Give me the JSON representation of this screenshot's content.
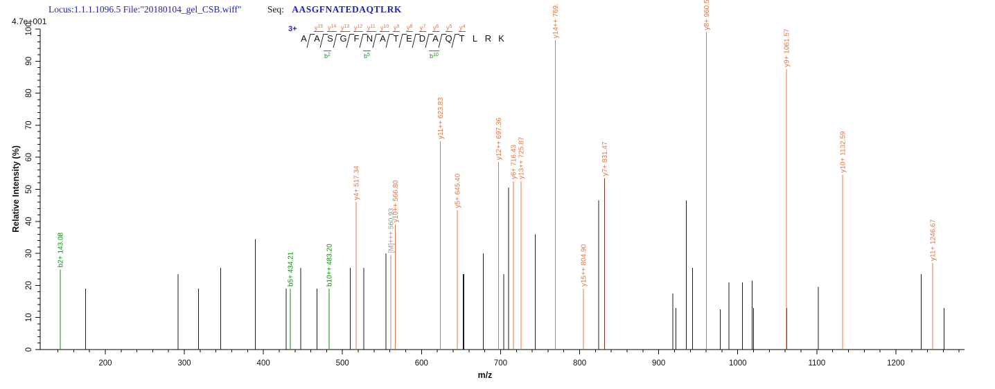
{
  "header": {
    "locus_file": "Locus:1.1.1.1096.5 File:\"20180104_gel_CSB.wiff\"",
    "seq_label": "Seq:",
    "seq_value": "AASGFNATEDAQTLRK"
  },
  "scale_note": "4.7e+001",
  "sequence_panel": {
    "charge_label": "3+",
    "residues": [
      "A",
      "A",
      "S",
      "G",
      "F",
      "N",
      "A",
      "T",
      "E",
      "D",
      "A",
      "Q",
      "T",
      "L",
      "R",
      "K"
    ],
    "y_ion_labels": [
      "y15",
      "y14",
      "y13",
      "y12",
      "y11",
      "y10",
      "y9",
      "y8",
      "y7",
      "y6",
      "y5",
      "y4"
    ],
    "b_ion_labels": [
      {
        "after_residue": 2,
        "label": "b2"
      },
      {
        "after_residue": 5,
        "label": "b5"
      },
      {
        "after_residue": 10,
        "label": "b10"
      }
    ]
  },
  "chart_data": {
    "type": "bar",
    "variant": "ms2-peptide-fragment-spectrum",
    "xlabel": "m/z",
    "ylabel": "Relative  Intensity (%)",
    "y_scale_note": "4.7e+001",
    "xlim": [
      121,
      1287
    ],
    "ylim": [
      0,
      100
    ],
    "x_major_ticks": [
      200,
      300,
      400,
      500,
      600,
      700,
      800,
      900,
      1000,
      1100,
      1200
    ],
    "x_minor_step": 20,
    "y_major_step": 10,
    "y_minor_step": 2,
    "grid": false,
    "legend": "none",
    "colors": {
      "y_ion": "#e4743e",
      "b_ion": "#089008",
      "precursor": "#979797",
      "unassigned": "#1a1a1a",
      "overlap": "#7c3014",
      "axis": "#000000",
      "header_blue": "#2323b4"
    },
    "peaks": [
      {
        "mz": 143.08,
        "i": 25,
        "label": "b2+ 143.08",
        "type": "b"
      },
      {
        "mz": 175,
        "i": 19,
        "type": "unassigned"
      },
      {
        "mz": 292,
        "i": 23.5,
        "type": "unassigned"
      },
      {
        "mz": 318,
        "i": 19,
        "type": "unassigned"
      },
      {
        "mz": 346,
        "i": 25.5,
        "type": "unassigned"
      },
      {
        "mz": 390,
        "i": 34.5,
        "type": "unassigned"
      },
      {
        "mz": 429,
        "i": 19,
        "type": "unassigned"
      },
      {
        "mz": 434.21,
        "i": 19,
        "label": "b5+ 434.21",
        "type": "b"
      },
      {
        "mz": 447,
        "i": 25.5,
        "type": "unassigned"
      },
      {
        "mz": 468,
        "i": 19,
        "type": "unassigned"
      },
      {
        "mz": 483.2,
        "i": 19,
        "label": "b10++ 483.20",
        "type": "b"
      },
      {
        "mz": 510,
        "i": 25.5,
        "type": "unassigned"
      },
      {
        "mz": 517.34,
        "i": 46,
        "label": "y4+ 517.34",
        "type": "y"
      },
      {
        "mz": 527,
        "i": 25.5,
        "type": "unassigned"
      },
      {
        "mz": 555,
        "i": 30,
        "type": "unassigned"
      },
      {
        "mz": 560.93,
        "i": 29.5,
        "label": "[M]+++ 560.93",
        "type": "precursor"
      },
      {
        "mz": 566.8,
        "i": 39,
        "label": "y10++ 566.80",
        "type": "y"
      },
      {
        "mz": 623.83,
        "i": 65,
        "label": "y11++ 623.83",
        "type": "y"
      },
      {
        "mz": 645.4,
        "i": 43.5,
        "label": "y5+ 645.40",
        "type": "y"
      },
      {
        "mz": 653,
        "i": 23.5,
        "type": "unassigned",
        "w": 2
      },
      {
        "mz": 678,
        "i": 30,
        "type": "unassigned"
      },
      {
        "mz": 697.36,
        "i": 58.5,
        "label": "y12++ 697.36",
        "type": "y"
      },
      {
        "mz": 704,
        "i": 23.5,
        "type": "unassigned"
      },
      {
        "mz": 710,
        "i": 50.5,
        "type": "unassigned"
      },
      {
        "mz": 716.43,
        "i": 52.5,
        "label": "y6+ 716.43",
        "type": "y"
      },
      {
        "mz": 725.87,
        "i": 52.5,
        "label": "y13++ 725.87",
        "type": "y"
      },
      {
        "mz": 744,
        "i": 36,
        "type": "unassigned"
      },
      {
        "mz": 769.4,
        "i": 96.5,
        "label": "y14++ 769.",
        "type": "y"
      },
      {
        "mz": 804.9,
        "i": 19,
        "label": "y15++ 804.90",
        "type": "y"
      },
      {
        "mz": 824,
        "i": 46.5,
        "type": "unassigned"
      },
      {
        "mz": 831.47,
        "i": 53.5,
        "label": "y7+ 831.47",
        "type": "y",
        "color": "overlap"
      },
      {
        "mz": 918,
        "i": 17.5,
        "type": "unassigned"
      },
      {
        "mz": 922,
        "i": 13,
        "type": "unassigned"
      },
      {
        "mz": 935,
        "i": 46.5,
        "type": "unassigned"
      },
      {
        "mz": 943,
        "i": 25.5,
        "type": "unassigned"
      },
      {
        "mz": 960.51,
        "i": 99,
        "label": "y8+ 960.51",
        "type": "y"
      },
      {
        "mz": 978,
        "i": 12.5,
        "type": "unassigned"
      },
      {
        "mz": 989,
        "i": 21,
        "type": "unassigned"
      },
      {
        "mz": 1006,
        "i": 21,
        "type": "unassigned"
      },
      {
        "mz": 1018,
        "i": 21.5,
        "type": "unassigned"
      },
      {
        "mz": 1020,
        "i": 13,
        "type": "unassigned"
      },
      {
        "mz": 1061.57,
        "i": 87.5,
        "label": "y9+ 1061.57",
        "type": "y"
      },
      {
        "mz": 1061.8,
        "i": 13,
        "type": "unassigned",
        "color": "overlap"
      },
      {
        "mz": 1102,
        "i": 19.5,
        "type": "unassigned"
      },
      {
        "mz": 1132.59,
        "i": 54.5,
        "label": "y10+ 1132.59",
        "type": "y"
      },
      {
        "mz": 1232,
        "i": 23.5,
        "type": "unassigned"
      },
      {
        "mz": 1246.67,
        "i": 27,
        "label": "y11+ 1246.67",
        "type": "y"
      },
      {
        "mz": 1261,
        "i": 13,
        "type": "unassigned"
      }
    ]
  }
}
